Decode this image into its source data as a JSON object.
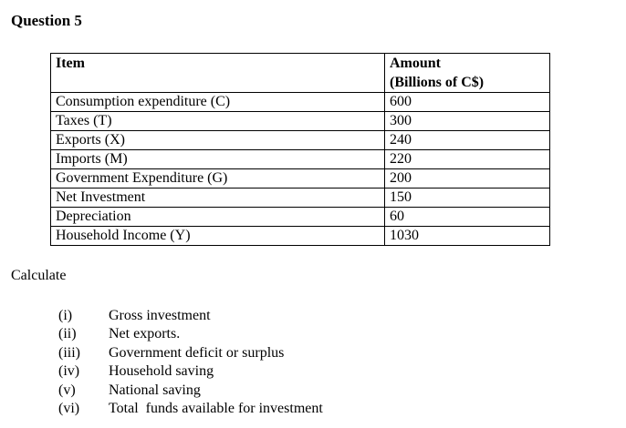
{
  "page": {
    "title": "Question 5"
  },
  "colors": {
    "text": "#000000",
    "background": "#ffffff",
    "table_border": "#000000"
  },
  "table": {
    "header": {
      "item": "Item",
      "amount_line1": "Amount",
      "amount_line2": "(Billions of C$)"
    },
    "rows": [
      {
        "item": "Consumption expenditure (C)",
        "amount": "600"
      },
      {
        "item": "Taxes (T)",
        "amount": "300"
      },
      {
        "item": "Exports (X)",
        "amount": "240"
      },
      {
        "item": "Imports (M)",
        "amount": "220"
      },
      {
        "item": "Government Expenditure (G)",
        "amount": "200"
      },
      {
        "item": "Net Investment",
        "amount": "150"
      },
      {
        "item": "Depreciation",
        "amount": "60"
      },
      {
        "item": "Household Income (Y)",
        "amount": "1030"
      }
    ]
  },
  "calculate": {
    "label": "Calculate",
    "items": [
      {
        "numeral": "(i)",
        "text": "Gross investment"
      },
      {
        "numeral": "(ii)",
        "text": "Net exports."
      },
      {
        "numeral": "(iii)",
        "text": "Government deficit or surplus"
      },
      {
        "numeral": "(iv)",
        "text": "Household saving"
      },
      {
        "numeral": "(v)",
        "text": "National saving"
      },
      {
        "numeral": "(vi)",
        "text": "Total  funds available for investment"
      }
    ]
  }
}
